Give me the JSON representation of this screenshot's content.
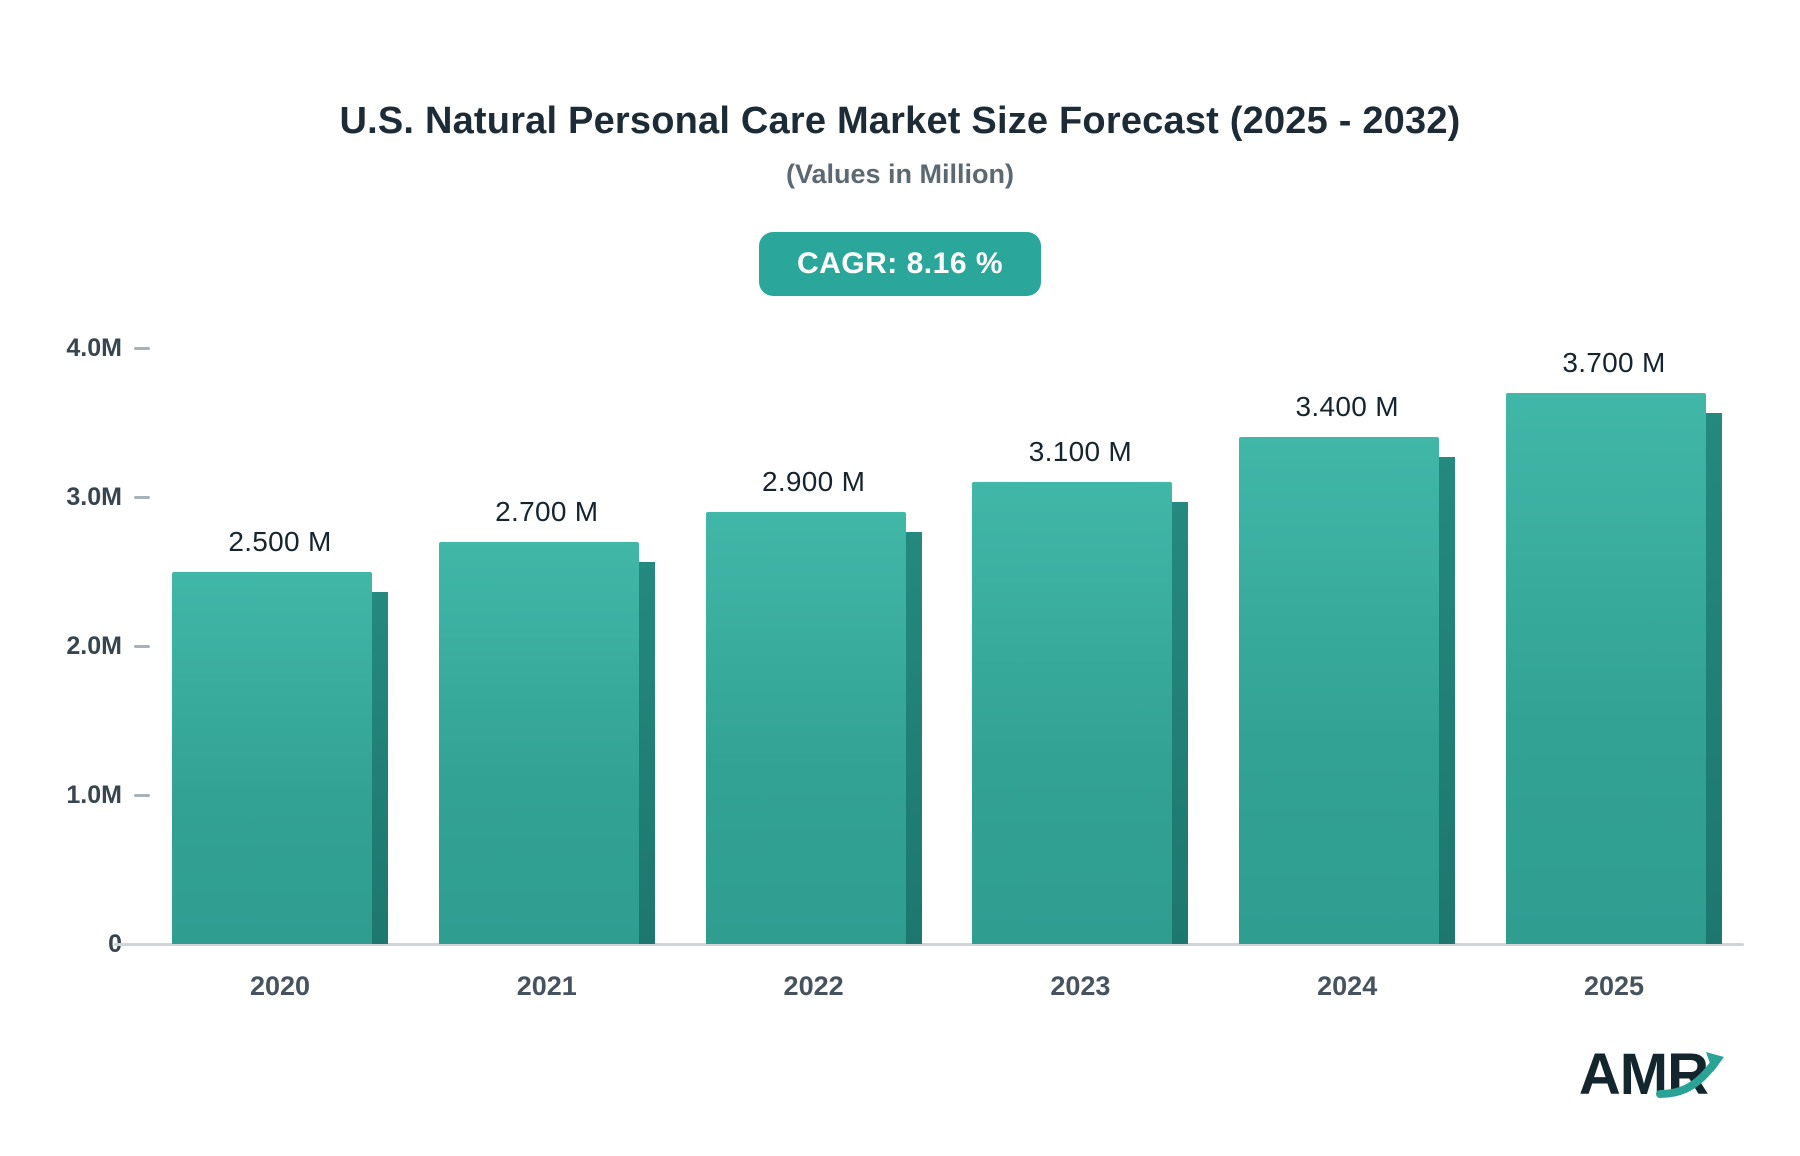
{
  "header": {
    "title": "U.S. Natural Personal Care Market Size Forecast (2025 - 2032)",
    "subtitle": "(Values in Million)",
    "cagr_badge": "CAGR: 8.16 %"
  },
  "brand": {
    "logo_text": "AMR",
    "arrow_icon": "trend-up-arrow"
  },
  "colors": {
    "bar_top": "#41b7a8",
    "bar_bottom": "#2f9e91",
    "bar_side_shadow": "#1d776f",
    "badge_bg": "#2ba69b",
    "badge_text": "#ffffff",
    "title_text": "#1c2b36",
    "subtitle_text": "#5c6872",
    "axis_text": "#36454f",
    "value_label_text": "#16242e",
    "baseline": "#cfd4d8",
    "brand_arrow": "#2aa396"
  },
  "chart_data": {
    "type": "bar",
    "title": "U.S. Natural Personal Care Market Size Forecast (2025 - 2032)",
    "subtitle": "(Values in Million)",
    "annotation": "CAGR: 8.16 %",
    "categories": [
      "2020",
      "2021",
      "2022",
      "2023",
      "2024",
      "2025"
    ],
    "values": [
      2.5,
      2.7,
      2.9,
      3.1,
      3.4,
      3.7
    ],
    "value_labels": [
      "2.500 M",
      "2.700 M",
      "2.900 M",
      "3.100 M",
      "3.400 M",
      "3.700 M"
    ],
    "xlabel": "",
    "ylabel": "",
    "ylim": [
      0,
      4
    ],
    "yticks": [
      {
        "label": "4.0M",
        "value": 4.0
      },
      {
        "label": "3.0M",
        "value": 3.0
      },
      {
        "label": "2.0M",
        "value": 2.0
      },
      {
        "label": "1.0M",
        "value": 1.0
      },
      {
        "label": "0",
        "value": 0.0
      }
    ],
    "grid": false,
    "legend": false
  }
}
